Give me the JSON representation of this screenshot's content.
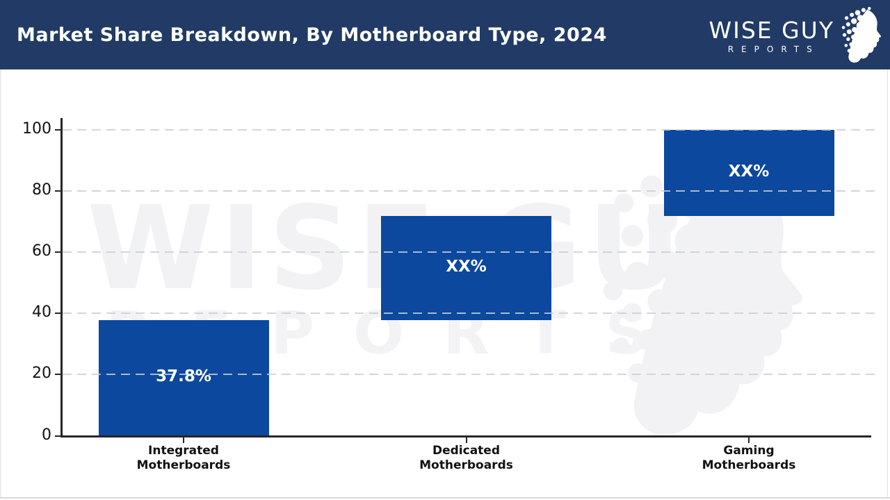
{
  "header": {
    "title": "Market Share Breakdown, By Motherboard Type, 2024",
    "logo": {
      "wordmark": "WISE GUY",
      "sub": "REPORTS"
    }
  },
  "watermark": {
    "wordmark": "WISE GUY",
    "sub": "REPORTS"
  },
  "chart_data": {
    "type": "bar",
    "subtype": "floating-segment-waterfall",
    "title": "Market Share Breakdown, By Motherboard Type, 2024",
    "categories": [
      "Integrated Motherboards",
      "Dedicated Motherboards",
      "Gaming Motherboards"
    ],
    "series": [
      {
        "name": "Market Share",
        "segments": [
          {
            "category": "Integrated Motherboards",
            "start": 0,
            "end": 37.8,
            "label": "37.8%"
          },
          {
            "category": "Dedicated Motherboards",
            "start": 37.8,
            "end": 71.8,
            "label": "XX%"
          },
          {
            "category": "Gaming Motherboards",
            "start": 71.8,
            "end": 100,
            "label": "XX%"
          }
        ]
      }
    ],
    "xlabel": "",
    "ylabel": "",
    "ylim": [
      0,
      100
    ],
    "yticks": [
      0,
      20,
      40,
      60,
      80,
      100
    ],
    "grid": "horizontal-dashed",
    "legend": "none",
    "bar_color": "#0B489E",
    "value_label_color": "#FFFFFF"
  },
  "colors": {
    "header_bg": "#213A66",
    "header_text": "#FFFFFF",
    "bar": "#0B489E",
    "axis": "#262626",
    "gridline": "#D3D7E0",
    "watermark": "#F2F2F4"
  }
}
